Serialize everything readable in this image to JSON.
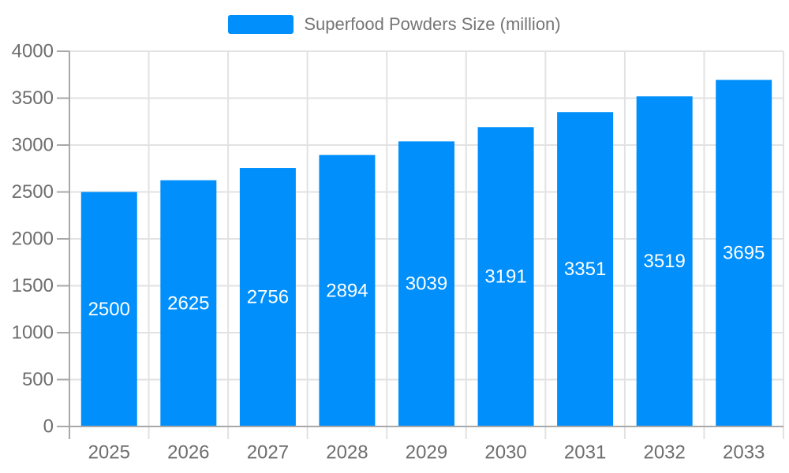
{
  "chart_data": {
    "type": "bar",
    "title": "Superfood Powders Size (million)",
    "categories": [
      "2025",
      "2026",
      "2027",
      "2028",
      "2029",
      "2030",
      "2031",
      "2032",
      "2033"
    ],
    "series": [
      {
        "name": "Superfood Powders Size (million)",
        "values": [
          2500,
          2625,
          2756,
          2894,
          3039,
          3191,
          3351,
          3519,
          3695
        ]
      }
    ],
    "bar_value_labels": [
      "2500",
      "2625",
      "2756",
      "2894",
      "3039",
      "3191",
      "3351",
      "3519",
      "3695"
    ],
    "xlabel": "",
    "ylabel": "",
    "ylim": [
      0,
      4000
    ],
    "yticks": [
      0,
      500,
      1000,
      1500,
      2000,
      2500,
      3000,
      3500,
      4000
    ],
    "ytick_labels": [
      "0",
      "500",
      "1000",
      "1500",
      "2000",
      "2500",
      "3000",
      "3500",
      "4000"
    ],
    "grid": true,
    "legend_position": "top",
    "bar_labels_visible": true,
    "colors": {
      "bar": "#008FFB",
      "bar_label": "#ffffff",
      "axis_label": "#6e6e6e",
      "legend_label": "#757575",
      "gridline": "#e2e2e2",
      "axis_line": "#a8a8a8"
    }
  }
}
